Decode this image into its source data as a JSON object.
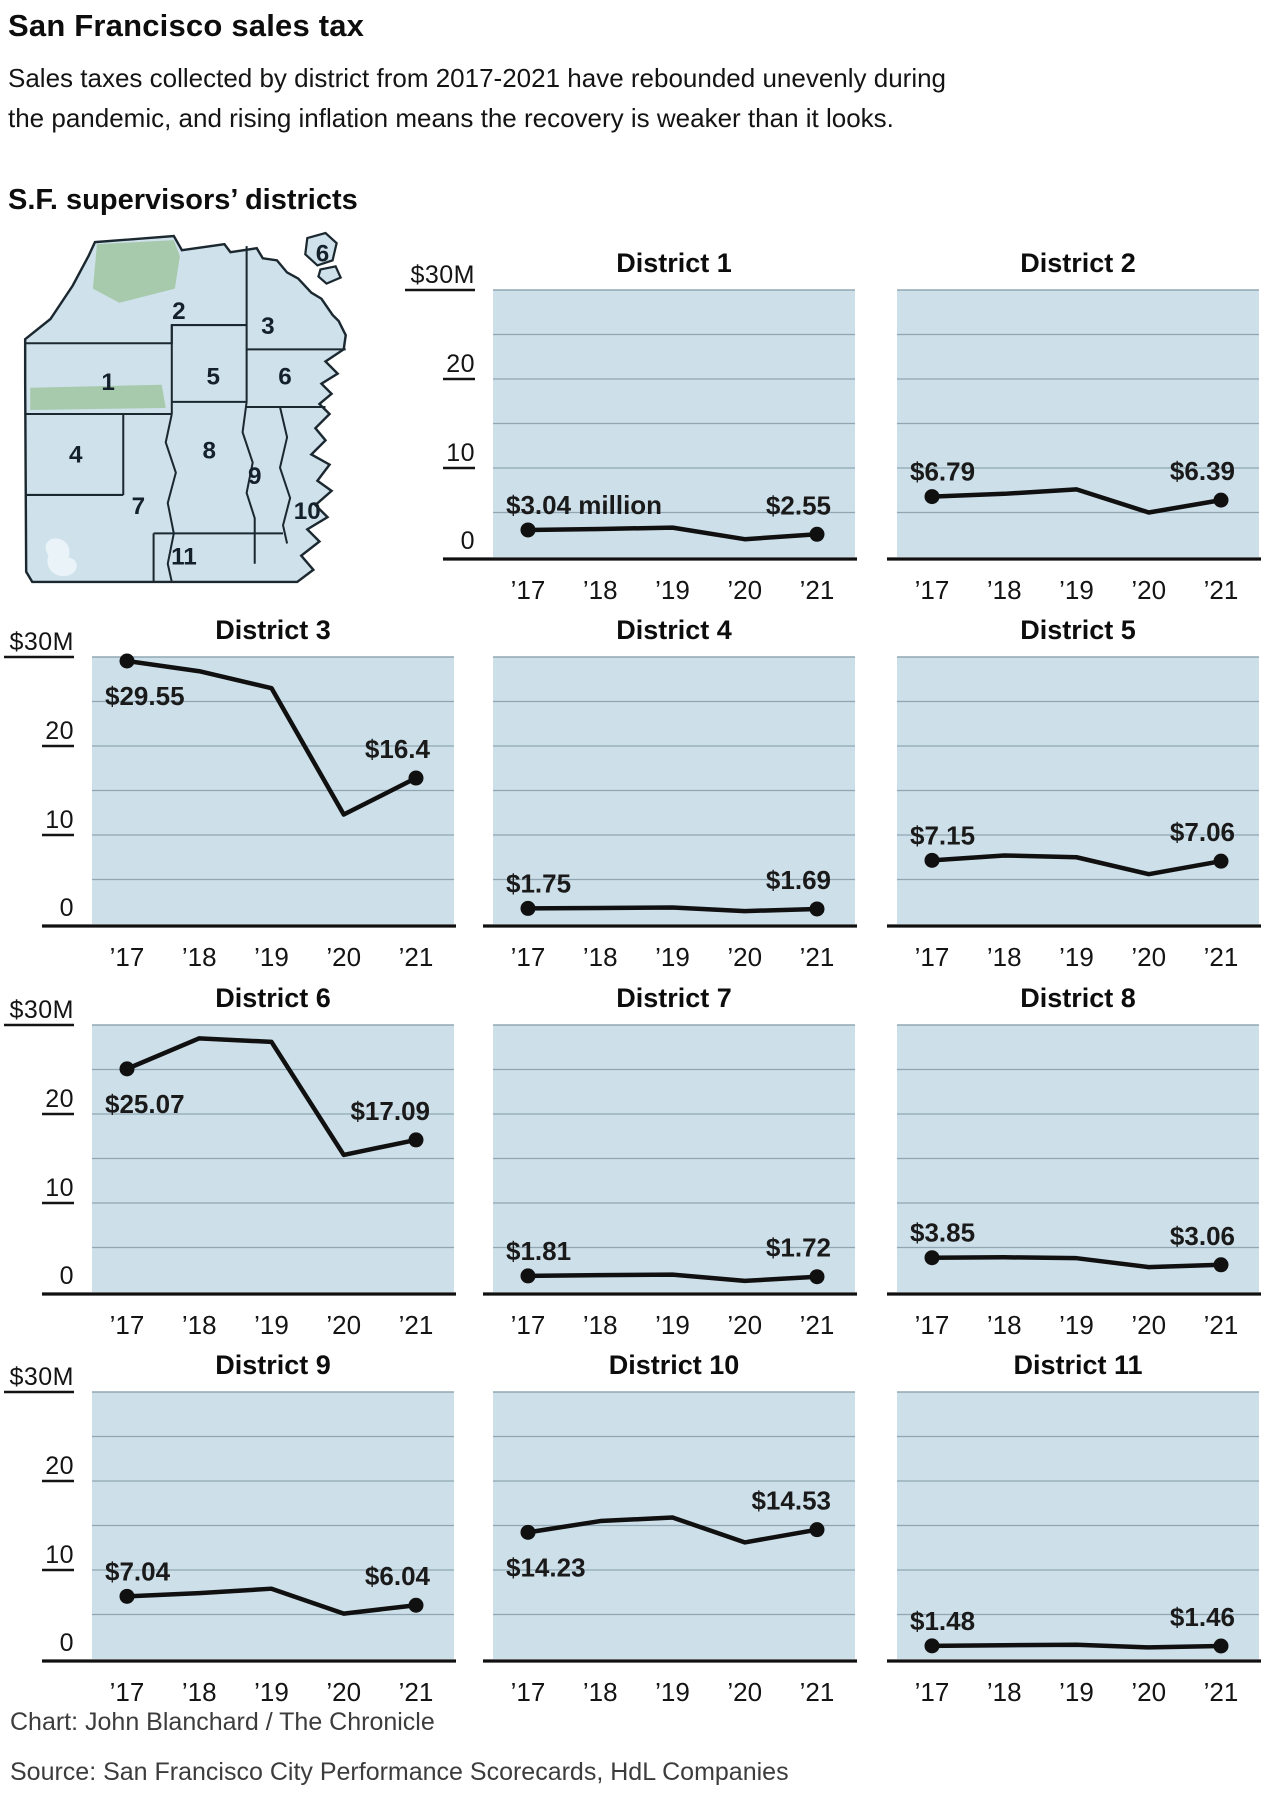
{
  "header": {
    "title": "San Francisco sales tax",
    "subtitle": "Sales taxes collected by district from 2017-2021 have rebounded unevenly during the pandemic, and rising inflation means the recovery is weaker than it looks."
  },
  "map": {
    "heading": "S.F. supervisors’ districts",
    "labels": [
      "1",
      "2",
      "3",
      "4",
      "5",
      "6",
      "7",
      "8",
      "9",
      "10",
      "11"
    ],
    "island_label": "6",
    "land_color": "#cfe1eb",
    "park_color": "#a7c9ac",
    "lake_color": "#e9f3f8",
    "outline_color": "#1b2830"
  },
  "chart_data": {
    "type": "line",
    "categories": [
      "’17",
      "’18",
      "’19",
      "’20",
      "’21"
    ],
    "ylim": [
      0,
      30
    ],
    "grid_interval": 5,
    "grid_on": true,
    "y_ticks": [
      {
        "label": "$30M",
        "value": 30
      },
      {
        "label": "20",
        "value": 20
      },
      {
        "label": "10",
        "value": 10
      },
      {
        "label": "0",
        "value": 0
      }
    ],
    "series": [
      {
        "name": "District 1",
        "values": [
          3.04,
          3.15,
          3.3,
          2.0,
          2.55
        ],
        "first_label": "$3.04 million",
        "last_label": "$2.55"
      },
      {
        "name": "District 2",
        "values": [
          6.79,
          7.1,
          7.6,
          5.0,
          6.39
        ],
        "first_label": "$6.79",
        "last_label": "$6.39"
      },
      {
        "name": "District 3",
        "values": [
          29.55,
          28.4,
          26.5,
          12.3,
          16.4
        ],
        "first_label": "$29.55",
        "last_label": "$16.4"
      },
      {
        "name": "District 4",
        "values": [
          1.75,
          1.8,
          1.85,
          1.45,
          1.69
        ],
        "first_label": "$1.75",
        "last_label": "$1.69"
      },
      {
        "name": "District 5",
        "values": [
          7.15,
          7.7,
          7.5,
          5.6,
          7.06
        ],
        "first_label": "$7.15",
        "last_label": "$7.06"
      },
      {
        "name": "District 6",
        "values": [
          25.07,
          28.5,
          28.1,
          15.4,
          17.09
        ],
        "first_label": "$25.07",
        "last_label": "$17.09"
      },
      {
        "name": "District 7",
        "values": [
          1.81,
          1.9,
          1.95,
          1.25,
          1.72
        ],
        "first_label": "$1.81",
        "last_label": "$1.72"
      },
      {
        "name": "District 8",
        "values": [
          3.85,
          3.9,
          3.8,
          2.8,
          3.06
        ],
        "first_label": "$3.85",
        "last_label": "$3.06"
      },
      {
        "name": "District 9",
        "values": [
          7.04,
          7.4,
          7.9,
          5.1,
          6.04
        ],
        "first_label": "$7.04",
        "last_label": "$6.04"
      },
      {
        "name": "District 10",
        "values": [
          14.23,
          15.5,
          15.9,
          13.1,
          14.53
        ],
        "first_label": "$14.23",
        "last_label": "$14.53"
      },
      {
        "name": "District 11",
        "values": [
          1.48,
          1.55,
          1.6,
          1.3,
          1.46
        ],
        "first_label": "$1.48",
        "last_label": "$1.46"
      }
    ]
  },
  "colors": {
    "plot_bg": "#cddfe9",
    "gridline": "#90a7b3",
    "line": "#101010",
    "label_text": "#1a1a1a",
    "axis_text": "#141414"
  },
  "footer": {
    "credit": "Chart: John Blanchard / The Chronicle",
    "source": "Source: San Francisco City Performance Scorecards, HdL Companies"
  }
}
